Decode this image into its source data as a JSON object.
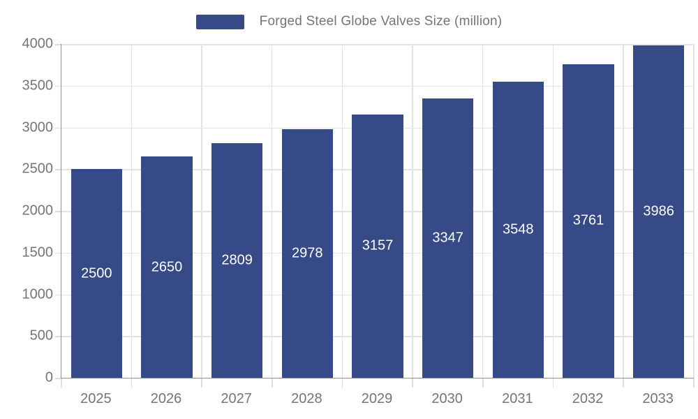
{
  "chart_data": {
    "type": "bar",
    "title": "Forged Steel Globe Valves Size (million)",
    "series": [
      {
        "name": "Forged Steel Globe Valves Size (million)",
        "values": [
          2500,
          2650,
          2809,
          2978,
          3157,
          3347,
          3548,
          3761,
          3986
        ]
      }
    ],
    "categories": [
      "2025",
      "2026",
      "2027",
      "2028",
      "2029",
      "2030",
      "2031",
      "2032",
      "2033"
    ],
    "xlabel": "",
    "ylabel": "",
    "ylim": [
      0,
      4000
    ],
    "ytick_interval": 500,
    "yticks": [
      0,
      500,
      1000,
      1500,
      2000,
      2500,
      3000,
      3500,
      4000
    ],
    "grid": true,
    "legend_position": "top-center",
    "value_labels": "inside-center"
  },
  "legend": {
    "label": "Forged Steel Globe Valves Size (million)",
    "swatch_color": "#354A86"
  },
  "colors": {
    "bar": "#354A86",
    "grid": "#e3e3e3",
    "axis": "#919191",
    "tick": "#dcdcdc",
    "axis_text": "#757575",
    "value_text": "#ffffff",
    "background": "#ffffff"
  }
}
